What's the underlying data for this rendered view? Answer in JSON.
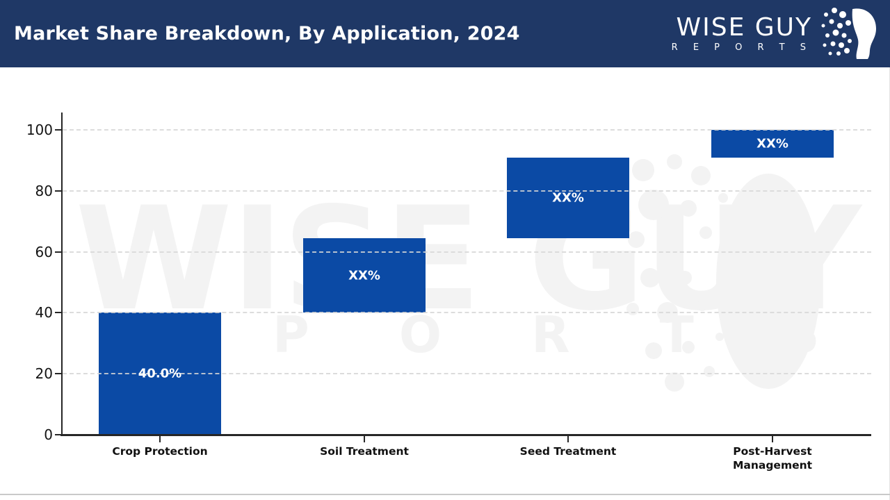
{
  "header": {
    "title": "Market Share Breakdown, By Application, 2024",
    "bg_color": "#1f3866",
    "logo": {
      "line1": "WISE GUY",
      "line2": "R E P O R T S"
    }
  },
  "watermark": {
    "line1": "WISE GUY",
    "line2": "P O R T S",
    "color": "#f3f3f3"
  },
  "chart_data": {
    "type": "bar",
    "subtype": "waterfall",
    "title": "Market Share Breakdown, By Application, 2024",
    "xlabel": "",
    "ylabel": "",
    "categories": [
      "Crop Protection",
      "Soil Treatment",
      "Seed Treatment",
      "Post-Harvest\nManagement"
    ],
    "segments": [
      {
        "category": "Crop Protection",
        "start": 0,
        "end": 40,
        "label": "40.0%"
      },
      {
        "category": "Soil Treatment",
        "start": 40,
        "end": 64.5,
        "label": "XX%"
      },
      {
        "category": "Seed Treatment",
        "start": 64.5,
        "end": 91,
        "label": "XX%"
      },
      {
        "category": "Post-Harvest\nManagement",
        "start": 91,
        "end": 100,
        "label": "XX%"
      }
    ],
    "yticks": [
      0,
      20,
      40,
      60,
      80,
      100
    ],
    "ylim": [
      0,
      105
    ],
    "grid": "dashed-horizontal",
    "legend": "none",
    "bar_color": "#0b4aa5",
    "bar_label_color": "#ffffff"
  }
}
